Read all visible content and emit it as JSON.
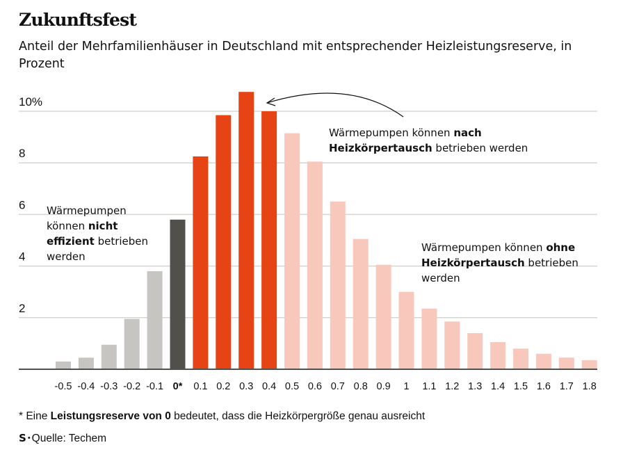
{
  "header": {
    "title": "Zukunftsfest",
    "subtitle": "Anteil der Mehrfamilienhäuser in Deutschland mit entsprechender Heizleistungsreserve, in Prozent"
  },
  "annotations": {
    "left": {
      "pre": "Wärmepumpen können ",
      "bold": "nicht effizient",
      "post": " betrieben werden"
    },
    "middle": {
      "pre": "Wärmepumpen können ",
      "bold": "nach Heizkörpertausch",
      "post": " betrieben werden"
    },
    "right": {
      "pre": "Wärmepumpen können ",
      "bold": "ohne Heizkörpertausch",
      "post": " betrieben werden"
    }
  },
  "footer": {
    "footnote_pre": "* Eine ",
    "footnote_bold": "Leistungsreserve von 0",
    "footnote_post": " bedeutet, dass die Heizkörpergröße genau ausreicht",
    "source_logo": "S",
    "source_sep": "•",
    "source": "Quelle: Techem"
  },
  "colors": {
    "inefficient": "#c6c5c1",
    "zero": "#52504d",
    "after_swap": "#e64415",
    "without_swap": "#f8c8bd",
    "grid": "#d6d5d1",
    "axis": "#52504d"
  },
  "chart_data": {
    "type": "bar",
    "title": "Zukunftsfest",
    "subtitle": "Anteil der Mehrfamilienhäuser in Deutschland mit entsprechender Heizleistungsreserve, in Prozent",
    "xlabel": "",
    "ylabel": "",
    "ylim": [
      0,
      10.9
    ],
    "yticks": [
      2,
      4,
      6,
      8,
      10
    ],
    "ytick_labels": [
      "2",
      "4",
      "6",
      "8",
      "10%"
    ],
    "grid": true,
    "categories": [
      "-0.5",
      "-0.4",
      "-0.3",
      "-0.2",
      "-0.1",
      "0*",
      "0.1",
      "0.2",
      "0.3",
      "0.4",
      "0.5",
      "0.6",
      "0.7",
      "0.8",
      "0.9",
      "1",
      "1.1",
      "1.2",
      "1.3",
      "1.4",
      "1.5",
      "1.6",
      "1.7",
      "1.8"
    ],
    "values": [
      0.3,
      0.45,
      0.95,
      1.95,
      3.8,
      5.8,
      8.25,
      9.85,
      10.75,
      10.0,
      9.15,
      8.05,
      6.5,
      5.05,
      4.05,
      3.0,
      2.35,
      1.85,
      1.4,
      1.05,
      0.8,
      0.6,
      0.45,
      0.35
    ],
    "groups": [
      "inefficient",
      "inefficient",
      "inefficient",
      "inefficient",
      "inefficient",
      "zero",
      "after_swap",
      "after_swap",
      "after_swap",
      "after_swap",
      "without_swap",
      "without_swap",
      "without_swap",
      "without_swap",
      "without_swap",
      "without_swap",
      "without_swap",
      "without_swap",
      "without_swap",
      "without_swap",
      "without_swap",
      "without_swap",
      "without_swap",
      "without_swap"
    ],
    "bold_categories": [
      "0*"
    ]
  }
}
